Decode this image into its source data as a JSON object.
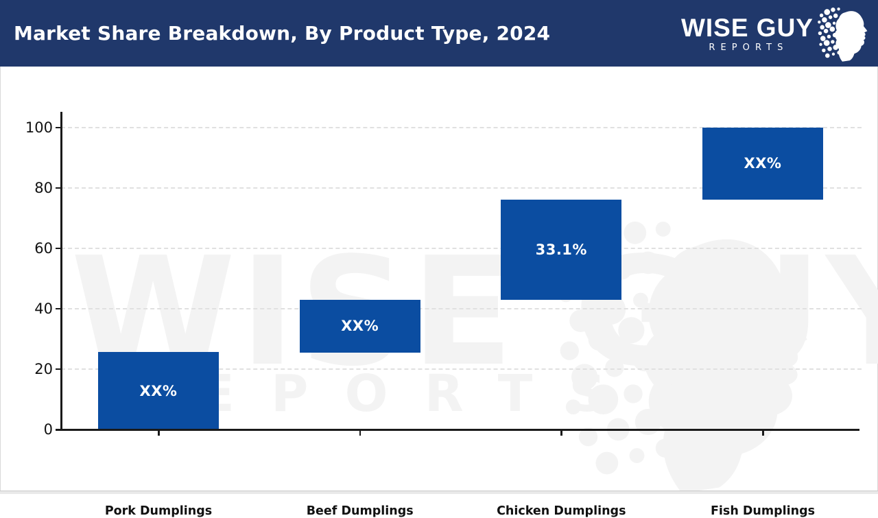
{
  "header": {
    "title": "Market Share Breakdown, By Product Type, 2024",
    "logo": {
      "line1": "WISE GUY",
      "line2": "REPORTS"
    }
  },
  "watermark": {
    "line1": "WISE GUY",
    "line2": "REPORTS"
  },
  "colors": {
    "header_bg": "#20386b",
    "bar": "#0b4da1",
    "bar_label": "#ffffff",
    "grid": "#e0e0e0",
    "axis": "#1a1a1a",
    "watermark": "#f3f3f3"
  },
  "chart_data": {
    "type": "bar",
    "variant": "floating-waterfall-segments",
    "title": "Market Share Breakdown, By Product Type, 2024",
    "categories": [
      "Pork Dumplings",
      "Beef Dumplings",
      "Chicken Dumplings",
      "Fish Dumplings"
    ],
    "segments": [
      {
        "category": "Pork Dumplings",
        "start": 0,
        "end": 25.6,
        "label": "XX%"
      },
      {
        "category": "Beef Dumplings",
        "start": 25.5,
        "end": 43.0,
        "label": "XX%"
      },
      {
        "category": "Chicken Dumplings",
        "start": 43.0,
        "end": 76.1,
        "label": "33.1%"
      },
      {
        "category": "Fish Dumplings",
        "start": 76.1,
        "end": 100,
        "label": "XX%"
      }
    ],
    "xlabel": "",
    "ylabel": "",
    "ylim": [
      0,
      100
    ],
    "yticks": [
      0,
      20,
      40,
      60,
      80,
      100
    ],
    "grid": {
      "horizontal": true,
      "style": "dashed"
    },
    "legend": null
  }
}
